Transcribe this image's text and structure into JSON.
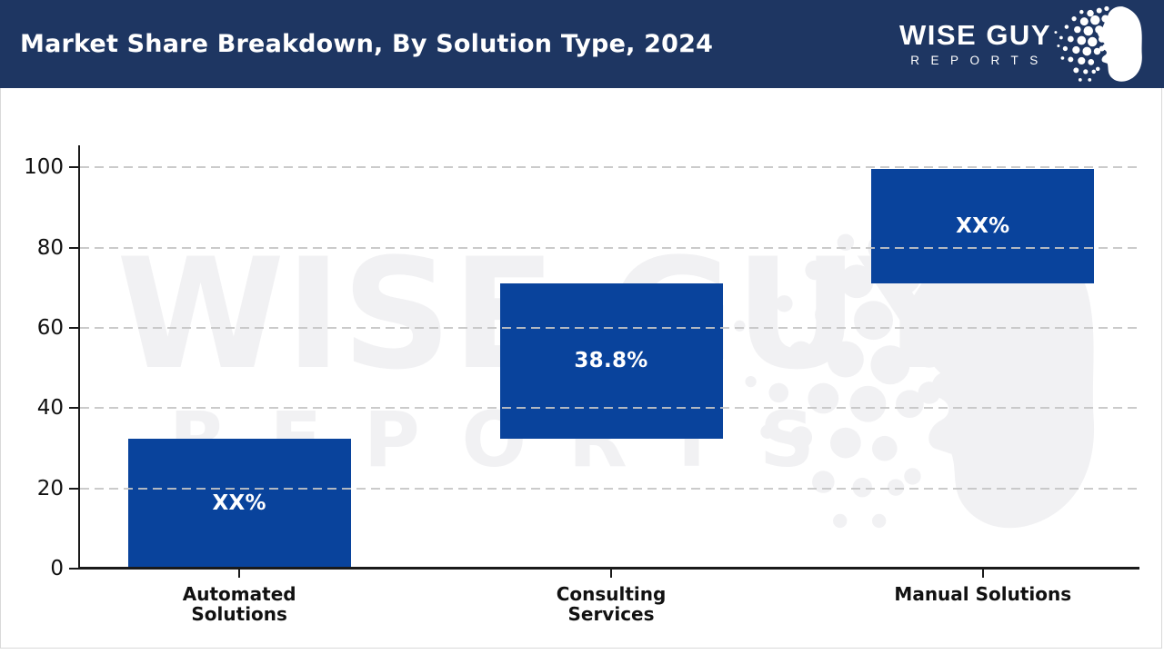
{
  "header": {
    "title": "Market Share Breakdown, By Solution Type, 2024",
    "brand": {
      "line1": "WISE GUY",
      "line2": "REPORTS"
    }
  },
  "watermark": {
    "line1": "WISE GUY",
    "line2": "REPORTS"
  },
  "icons": {
    "brand_face": "dotted-head-profile"
  },
  "colors": {
    "header_background": "#1e3662",
    "bar_blue": "#09439c",
    "grid_gray": "#c8c8c8",
    "figure_border": "#d9d9d9",
    "watermark_gray": "#f1f1f3",
    "axis_black": "#1a1a1a"
  },
  "chart_data": {
    "type": "bar",
    "subtype": "stepped-waterfall",
    "title": "Market Share Breakdown, By Solution Type, 2024",
    "categories": [
      "Automated\nSolutions",
      "Consulting\nServices",
      "Manual Solutions"
    ],
    "segments": [
      {
        "category": "Automated Solutions",
        "start": 0,
        "end": 32.4,
        "value_label": "XX%"
      },
      {
        "category": "Consulting Services",
        "start": 32.4,
        "end": 71.2,
        "value_label": "38.8%"
      },
      {
        "category": "Manual Solutions",
        "start": 71.2,
        "end": 99.6,
        "value_label": "XX%"
      }
    ],
    "values": [
      32.4,
      38.8,
      28.4
    ],
    "yticks": [
      0,
      20,
      40,
      60,
      80,
      100
    ],
    "ylim": [
      0,
      105.5
    ],
    "xlabel": "",
    "ylabel": "",
    "grid": "horizontal dashed, drawn above bars",
    "legend": "none",
    "bar_color": "#09439c",
    "bar_label_color": "#ffffff"
  }
}
